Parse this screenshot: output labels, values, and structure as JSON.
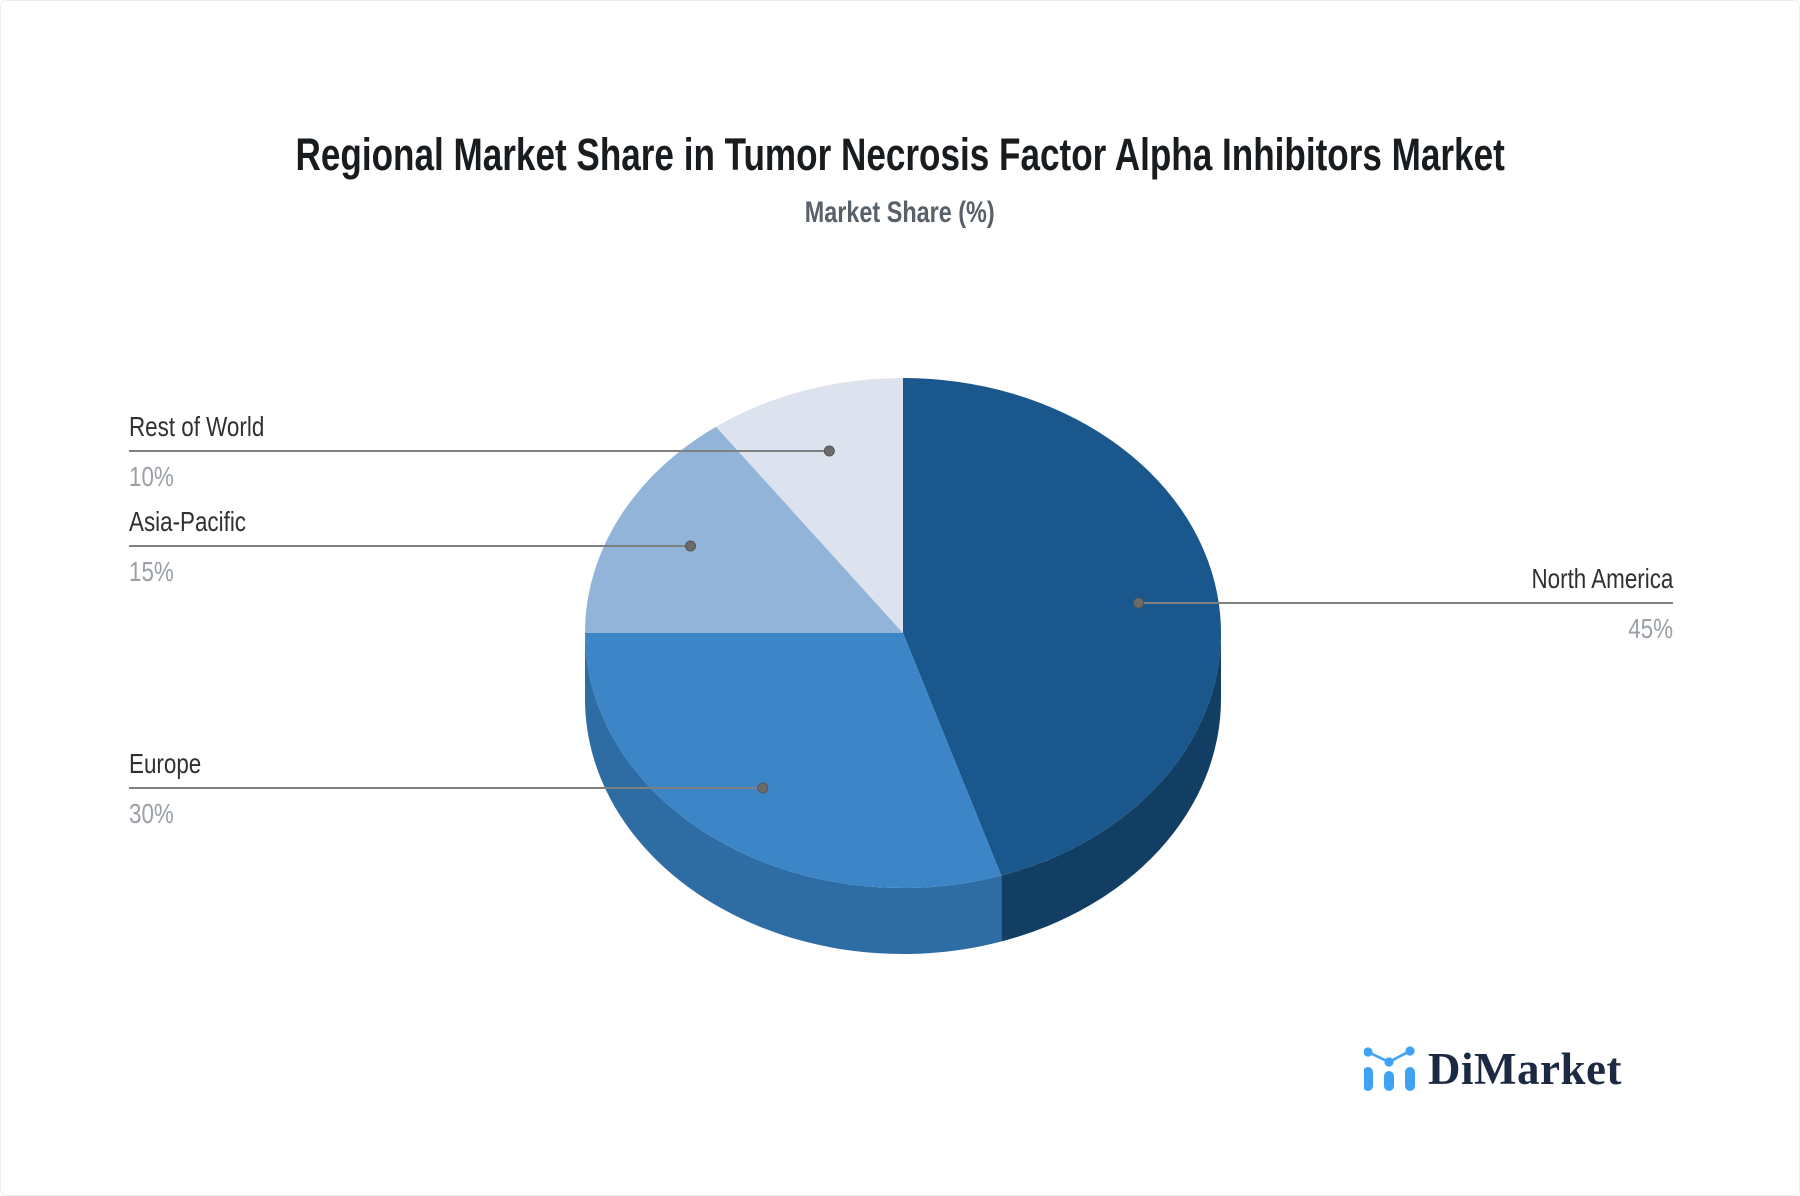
{
  "page": {
    "title": "Regional Market Share in Tumor Necrosis Factor Alpha Inhibitors Market",
    "subtitle": "Market Share (%)"
  },
  "chart_data": {
    "type": "pie",
    "title": "Regional Market Share in Tumor Necrosis Factor Alpha Inhibitors Market",
    "subtitle": "Market Share (%)",
    "unit": "%",
    "effect": "3d",
    "direction": "clockwise",
    "start_angle_deg": 0,
    "legend_position": "none",
    "slices": [
      {
        "label": "North America",
        "value": 45,
        "color": "#1a578c",
        "side_color": "#123e63",
        "label_side": "right"
      },
      {
        "label": "Europe",
        "value": 30,
        "color": "#3c86c7",
        "side_color": "#2e6da4",
        "label_side": "left"
      },
      {
        "label": "Asia-Pacific",
        "value": 15,
        "color": "#91b4d8",
        "label_side": "left"
      },
      {
        "label": "Rest of World",
        "value": 10,
        "color": "#dce3ee",
        "label_side": "left"
      }
    ],
    "label_colors": {
      "name": "#303030",
      "value": "#9aa0a6",
      "connector": "#808080",
      "dot": "#6b6b6b"
    }
  },
  "branding": {
    "name": "DiMarket",
    "icon": "bar-line-chart-icon",
    "text_color": "#1b2a42",
    "icon_color": "#3fa2f4"
  }
}
